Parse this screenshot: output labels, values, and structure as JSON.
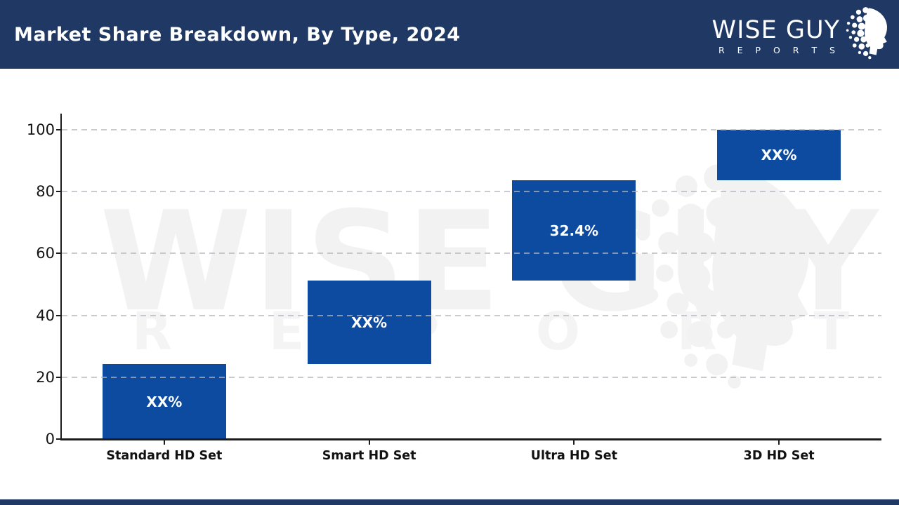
{
  "header": {
    "title": "Market Share Breakdown, By Type, 2024",
    "logo_line1": "WISE GUY",
    "logo_line2": "R E P O R T S"
  },
  "watermark": {
    "line1": "WISE GUY",
    "line2": "R E P O R T S"
  },
  "chart_data": {
    "type": "bar",
    "subtype": "floating-waterfall",
    "title": "Market Share Breakdown, By Type, 2024",
    "xlabel": "",
    "ylabel": "",
    "categories": [
      "Standard HD Set",
      "Smart HD Set",
      "Ultra HD Set",
      "3D HD Set"
    ],
    "segments": [
      {
        "category": "Standard HD Set",
        "start": 0,
        "end": 24.2,
        "label": "XX%"
      },
      {
        "category": "Smart HD Set",
        "start": 24.2,
        "end": 51.2,
        "label": "XX%"
      },
      {
        "category": "Ultra HD Set",
        "start": 51.2,
        "end": 83.6,
        "label": "32.4%"
      },
      {
        "category": "3D HD Set",
        "start": 83.6,
        "end": 100,
        "label": "XX%"
      }
    ],
    "yticks": [
      0,
      20,
      40,
      60,
      80,
      100
    ],
    "ylim": [
      0,
      105
    ],
    "grid": "horizontal-dashed",
    "legend": "none",
    "bar_color": "#0d4ba1",
    "bar_label_color": "#ffffff"
  },
  "colors": {
    "header_bg": "#203864",
    "footer_bg": "#203864",
    "bar": "#0d4ba1",
    "axis": "#1c1c1c",
    "grid": "#c9cdd4",
    "watermark": "#f2f2f2"
  }
}
